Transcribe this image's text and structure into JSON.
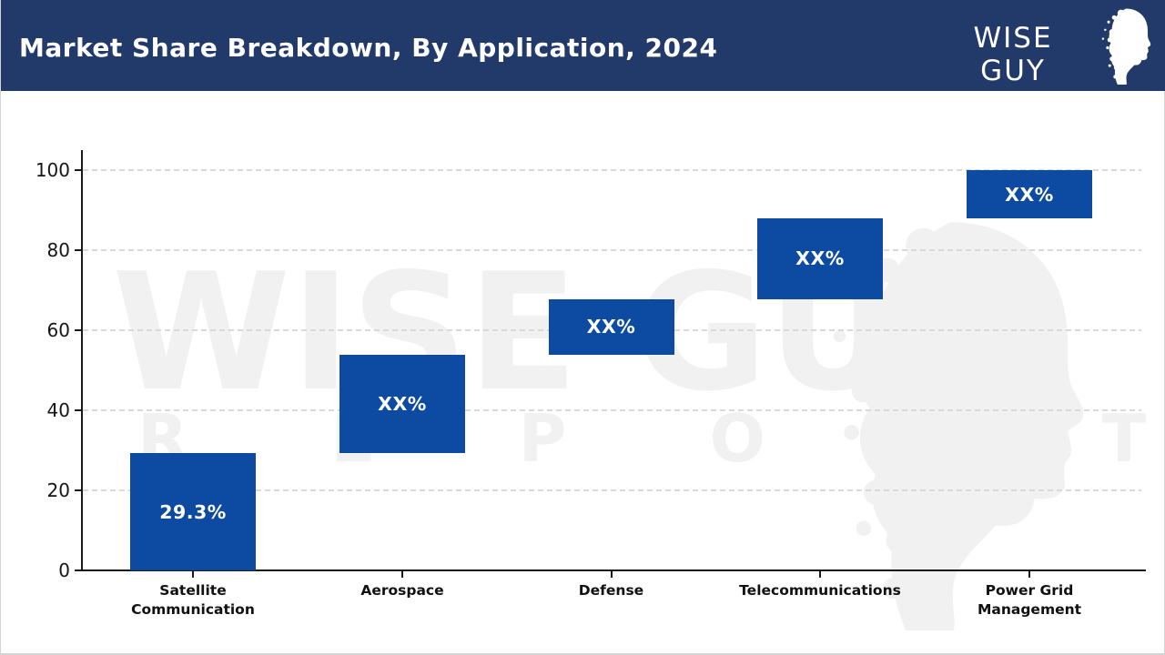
{
  "header": {
    "title": "Market Share Breakdown, By Application, 2024",
    "bg_color": "#223a6a",
    "logo": {
      "line1": "WISE GUY",
      "line2": "R E P O R T S"
    }
  },
  "watermark": {
    "line1": "WISE GUY",
    "line2": "R E P O R T S"
  },
  "chart_data": {
    "type": "bar",
    "subtype": "waterfall",
    "title": "Market Share Breakdown, By Application, 2024",
    "xlabel": "",
    "ylabel": "",
    "categories": [
      "Satellite\nCommunication",
      "Aerospace",
      "Defense",
      "Telecommunications",
      "Power Grid\nManagement"
    ],
    "segments": [
      {
        "category": "Satellite Communication",
        "start": 0,
        "end": 29.3,
        "label": "29.3%"
      },
      {
        "category": "Aerospace",
        "start": 29.3,
        "end": 53.9,
        "label": "XX%"
      },
      {
        "category": "Defense",
        "start": 53.9,
        "end": 67.8,
        "label": "XX%"
      },
      {
        "category": "Telecommunications",
        "start": 67.8,
        "end": 87.9,
        "label": "XX%"
      },
      {
        "category": "Power Grid Management",
        "start": 87.9,
        "end": 100,
        "label": "XX%"
      }
    ],
    "y_ticks": [
      0,
      20,
      40,
      60,
      80,
      100
    ],
    "ylim": [
      0,
      105
    ],
    "grid": true,
    "legend_position": "none",
    "bar_color": "#0c4ba1",
    "bar_label_color": "#ffffff",
    "gridline_color": "#d9d9d9",
    "axis_color": "#1a1a1a"
  }
}
